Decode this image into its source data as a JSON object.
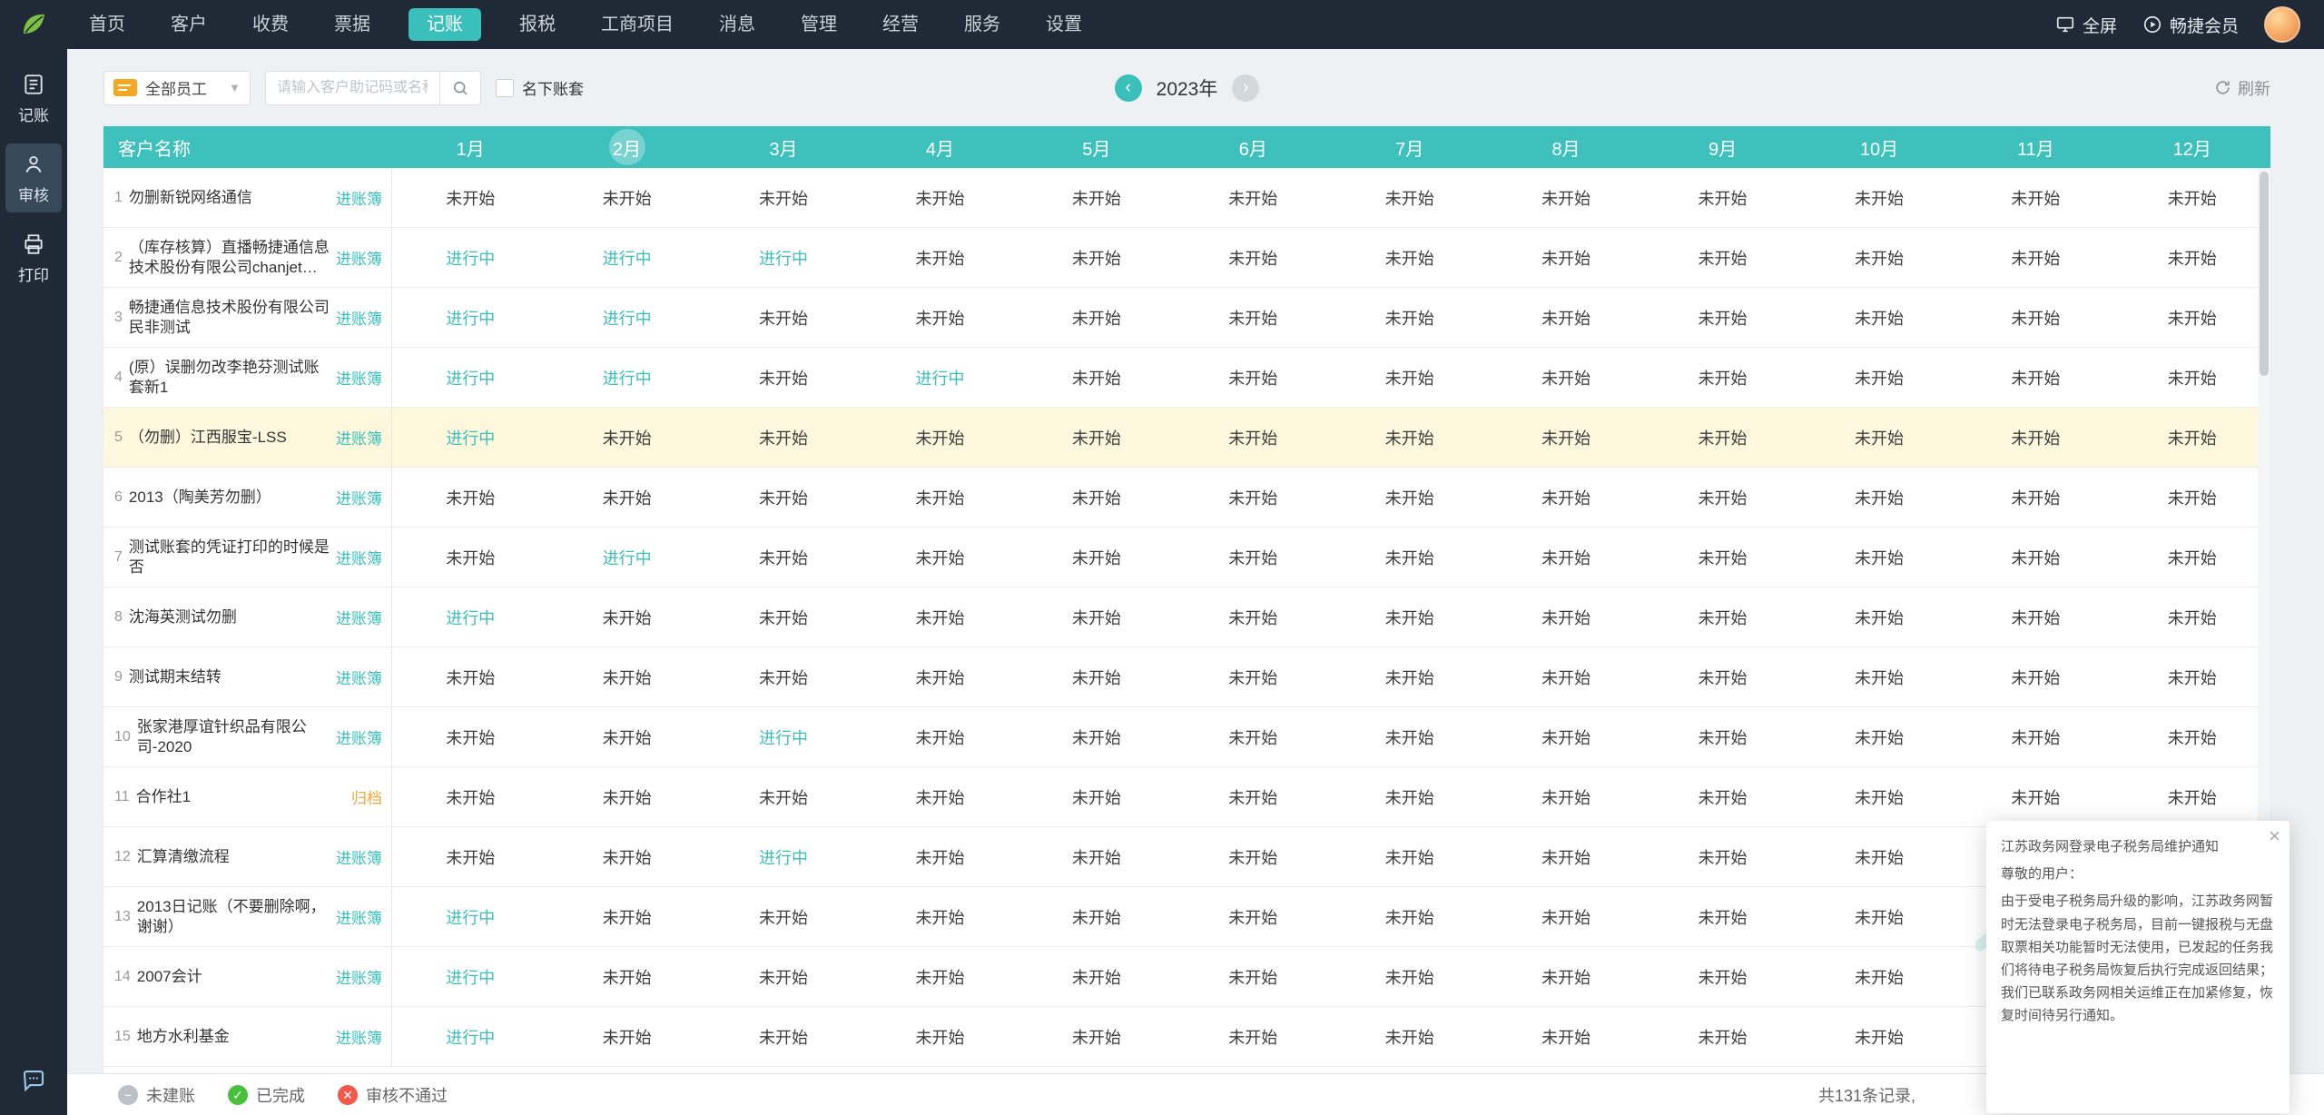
{
  "colors": {
    "accent": "#3bbfbb",
    "table_header": "#3ec0bc",
    "dark_chrome": "#1f2a36",
    "highlight_row": "#fdf7dd",
    "warning": "#f0a63a",
    "success": "#49c03c",
    "error": "#f3584c"
  },
  "topnav": {
    "items": [
      "首页",
      "客户",
      "收费",
      "票据",
      "记账",
      "报税",
      "工商项目",
      "消息",
      "管理",
      "经营",
      "服务",
      "设置"
    ],
    "active_index": 4,
    "fullscreen_label": "全屏",
    "member_label": "畅捷会员"
  },
  "sidebar": {
    "items": [
      {
        "label": "记账",
        "icon": "ledger-icon",
        "active": false
      },
      {
        "label": "审核",
        "icon": "audit-icon",
        "active": true
      },
      {
        "label": "打印",
        "icon": "print-icon",
        "active": false
      }
    ]
  },
  "toolbar": {
    "employee_filter": "全部员工",
    "search_placeholder": "请输入客户助记码或名称",
    "checkbox_label": "名下账套",
    "year_label": "2023年",
    "refresh_label": "刷新"
  },
  "table": {
    "name_header": "客户名称",
    "months": [
      "1月",
      "2月",
      "3月",
      "4月",
      "5月",
      "6月",
      "7月",
      "8月",
      "9月",
      "10月",
      "11月",
      "12月"
    ],
    "current_month_index": 1,
    "not_started_label": "未开始",
    "in_progress_label": "进行中",
    "rows": [
      {
        "num": "1",
        "name": "勿删新锐网络通信",
        "action": "进账簿",
        "action_style": "primary",
        "highlight": false,
        "in_progress_months": []
      },
      {
        "num": "2",
        "name": "（库存核算）直播畅捷通信息技术股份有限公司chanjet（原账套）",
        "action": "进账簿",
        "action_style": "primary",
        "highlight": false,
        "in_progress_months": [
          1,
          2,
          3
        ]
      },
      {
        "num": "3",
        "name": "畅捷通信息技术股份有限公司民非测试",
        "action": "进账簿",
        "action_style": "primary",
        "highlight": false,
        "in_progress_months": [
          1,
          2
        ]
      },
      {
        "num": "4",
        "name": "(原）误删勿改李艳芬测试账套新1",
        "action": "进账簿",
        "action_style": "primary",
        "highlight": false,
        "in_progress_months": [
          1,
          2,
          4
        ]
      },
      {
        "num": "5",
        "name": "（勿删）江西服宝-LSS",
        "action": "进账簿",
        "action_style": "primary",
        "highlight": true,
        "in_progress_months": [
          1
        ]
      },
      {
        "num": "6",
        "name": "2013（陶美芳勿删）",
        "action": "进账簿",
        "action_style": "primary",
        "highlight": false,
        "in_progress_months": []
      },
      {
        "num": "7",
        "name": "测试账套的凭证打印的时候是否",
        "action": "进账簿",
        "action_style": "primary",
        "highlight": false,
        "in_progress_months": [
          2
        ]
      },
      {
        "num": "8",
        "name": "沈海英测试勿删",
        "action": "进账簿",
        "action_style": "primary",
        "highlight": false,
        "in_progress_months": [
          1
        ]
      },
      {
        "num": "9",
        "name": "测试期末结转",
        "action": "进账簿",
        "action_style": "primary",
        "highlight": false,
        "in_progress_months": []
      },
      {
        "num": "10",
        "name": "张家港厚谊针织品有限公司-2020",
        "action": "进账簿",
        "action_style": "primary",
        "highlight": false,
        "in_progress_months": [
          3
        ]
      },
      {
        "num": "11",
        "name": "合作社1",
        "action": "归档",
        "action_style": "warning",
        "highlight": false,
        "in_progress_months": []
      },
      {
        "num": "12",
        "name": "汇算清缴流程",
        "action": "进账簿",
        "action_style": "primary",
        "highlight": false,
        "in_progress_months": [
          3
        ]
      },
      {
        "num": "13",
        "name": "2013日记账（不要删除啊，谢谢）",
        "action": "进账簿",
        "action_style": "primary",
        "highlight": false,
        "in_progress_months": [
          1
        ]
      },
      {
        "num": "14",
        "name": "2007会计",
        "action": "进账簿",
        "action_style": "primary",
        "highlight": false,
        "in_progress_months": [
          1
        ]
      },
      {
        "num": "15",
        "name": "地方水利基金",
        "action": "进账簿",
        "action_style": "primary",
        "highlight": false,
        "in_progress_months": [
          1
        ]
      }
    ]
  },
  "legend": {
    "items": [
      {
        "label": "未建账",
        "type": "minus"
      },
      {
        "label": "已完成",
        "type": "check"
      },
      {
        "label": "审核不通过",
        "type": "cross"
      }
    ]
  },
  "pagination": {
    "total_text": "共131条记录,"
  },
  "notification": {
    "lines": [
      "江苏政务网登录电子税务局维护通知",
      "尊敬的用户：",
      "由于受电子税务局升级的影响，江苏政务网暂时无法登录电子税务局，目前一键报税与无盘取票相关功能暂时无法使用，已发起的任务我们将待电子税务局恢复后执行完成返回结果；我们已联系政务网相关运维正在加紧修复，恢复时间待另行通知。"
    ]
  }
}
